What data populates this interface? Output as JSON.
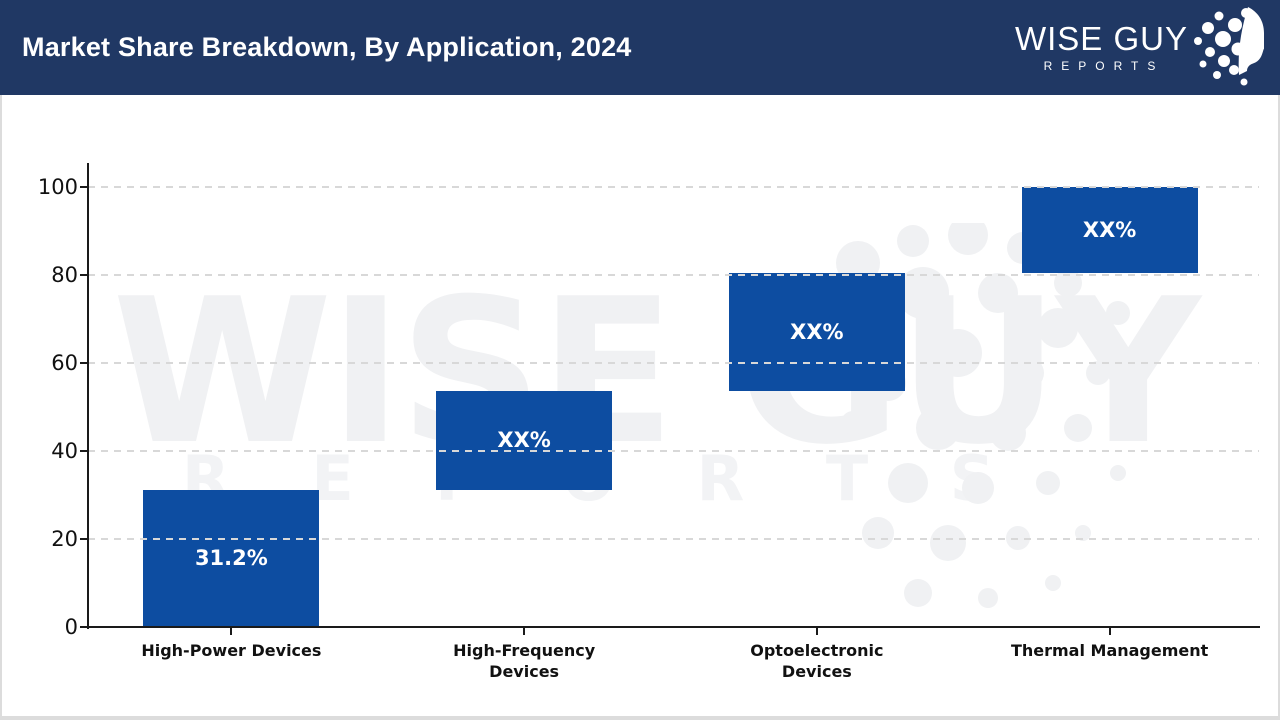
{
  "header": {
    "title": "Market Share Breakdown, By Application, 2024",
    "brand_line1": "WISE GUY",
    "brand_line2": "REPORTS",
    "bg_color": "#203864"
  },
  "watermark": {
    "line1": "WISE GUY",
    "line2": "R E P O R T S"
  },
  "chart_data": {
    "type": "bar",
    "subtype": "waterfall",
    "title": "Market Share Breakdown, By Application, 2024",
    "categories": [
      "High-Power Devices",
      "High-Frequency\nDevices",
      "Optoelectronic\nDevices",
      "Thermal Management"
    ],
    "segments": [
      {
        "category": "High-Power Devices",
        "start": 0,
        "end": 31.2,
        "label": "31.2%"
      },
      {
        "category": "High-Frequency Devices",
        "start": 31.2,
        "end": 53.6,
        "label": "XX%"
      },
      {
        "category": "Optoelectronic Devices",
        "start": 53.6,
        "end": 80.4,
        "label": "XX%"
      },
      {
        "category": "Thermal Management",
        "start": 80.4,
        "end": 100,
        "label": "XX%"
      }
    ],
    "yticks": [
      0,
      20,
      40,
      60,
      80,
      100
    ],
    "ylim": [
      0,
      105
    ],
    "xlabel": "",
    "ylabel": "",
    "legend": "none",
    "grid": "horizontal-dashed-above-bars",
    "bar_color": "#0d4da1",
    "grid_color": "#d8d8d8",
    "axis_color": "#1a1a1a",
    "bar_label_color": "#ffffff"
  }
}
